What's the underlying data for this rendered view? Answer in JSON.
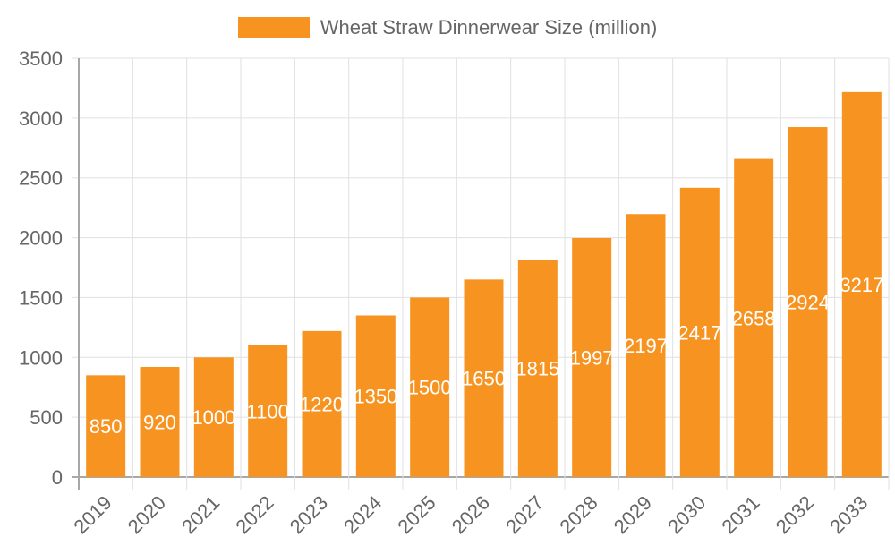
{
  "chart_data": {
    "type": "bar",
    "title": "",
    "legend": [
      "Wheat Straw Dinnerwear Size (million)"
    ],
    "legend_position": "top",
    "categories": [
      "2019",
      "2020",
      "2021",
      "2022",
      "2023",
      "2024",
      "2025",
      "2026",
      "2027",
      "2028",
      "2029",
      "2030",
      "2031",
      "2032",
      "2033"
    ],
    "series": [
      {
        "name": "Wheat Straw Dinnerwear Size (million)",
        "values": [
          850,
          920,
          1000,
          1100,
          1220,
          1350,
          1500,
          1650,
          1815,
          1997,
          2197,
          2417,
          2658,
          2924,
          3217
        ],
        "color": "#f79421"
      }
    ],
    "xlabel": "",
    "ylabel": "",
    "ylim": [
      0,
      3500
    ],
    "yticks": [
      0,
      500,
      1000,
      1500,
      2000,
      2500,
      3000,
      3500
    ],
    "grid": true,
    "data_labels": true
  },
  "legend": {
    "label": "Wheat Straw Dinnerwear Size (million)",
    "color": "#f79421"
  }
}
